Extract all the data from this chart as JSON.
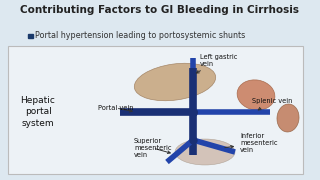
{
  "title": "Contributing Factors to GI Bleeding in Cirrhosis",
  "title_fontsize": 7.5,
  "title_fontweight": "bold",
  "title_color": "#222222",
  "bullet_text": "Portal hypertension leading to portosystemic shunts",
  "bullet_fontsize": 5.8,
  "bullet_color": "#333333",
  "bullet_marker_color": "#1a3a6b",
  "bg_color": "#dde8f0",
  "box_bg": "#edf2f6",
  "box_edge": "#bbbbbb",
  "label_hepatic": "Hepatic\nportal\nsystem",
  "label_portal_vein": "Portal vein",
  "label_left_gastric": "Left gastric\nvein",
  "label_splenic": "Splenic vein",
  "label_superior": "Superior\nmesenteric\nvein",
  "label_inferior": "Inferior\nmesenteric\nvein",
  "vein_color": "#1a3075",
  "vein_color2": "#2244aa",
  "annotation_fontsize": 4.8,
  "hepatic_label_fontsize": 6.5,
  "liver_color": "#c8a882",
  "stomach_color": "#c87a5a",
  "spleen_color": "#c07a5a",
  "intestine_color": "#c8b0a0"
}
